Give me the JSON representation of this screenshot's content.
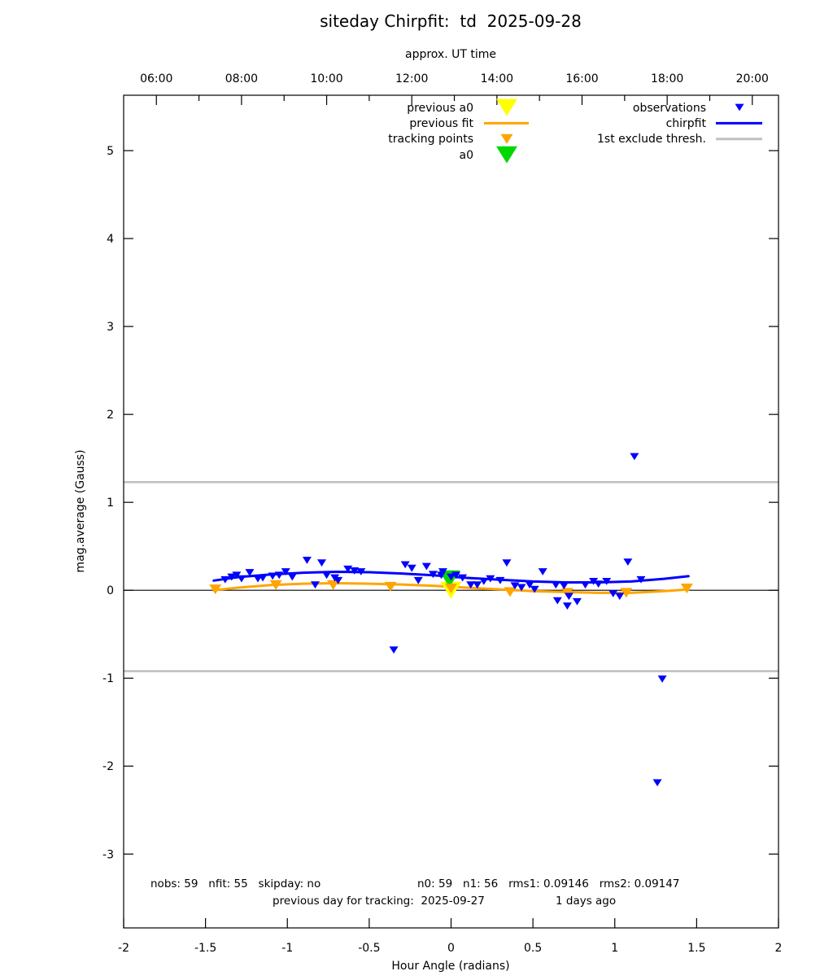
{
  "title": "siteday Chirpfit:  td  2025-09-28",
  "stats": {
    "line1_left": "nobs: 59   nfit: 55   skipday: no",
    "line1_right": "n0: 59   n1: 56   rms1: 0.09146   rms2: 0.09147",
    "line2_left": "previous day for tracking:  2025-09-27",
    "line2_right": "1 days ago"
  },
  "legend": {
    "left": [
      {
        "label": "previous a0",
        "marker": "triangle",
        "color": "#ffff00",
        "size": 26
      },
      {
        "label": "previous fit",
        "marker": "line",
        "color": "#ffa500",
        "size": 0
      },
      {
        "label": "tracking points",
        "marker": "triangle",
        "color": "#ffa500",
        "size": 15
      },
      {
        "label": "a0",
        "marker": "triangle",
        "color": "#00d800",
        "size": 26
      }
    ],
    "right": [
      {
        "label": "observations",
        "marker": "triangle",
        "color": "#0000ff",
        "size": 11
      },
      {
        "label": "chirpfit",
        "marker": "line",
        "color": "#0000ff",
        "size": 0
      },
      {
        "label": "1st exclude thresh.",
        "marker": "line",
        "color": "#c0c0c0",
        "size": 0
      }
    ]
  },
  "chart_data": {
    "type": "scatter",
    "title": "siteday Chirpfit:  td  2025-09-28",
    "x_axis": {
      "label": "Hour Angle (radians)",
      "min": -2,
      "max": 2,
      "ticks": [
        {
          "v": -2,
          "label": "-2"
        },
        {
          "v": -1.5,
          "label": "-1.5"
        },
        {
          "v": -1,
          "label": "-1"
        },
        {
          "v": -0.5,
          "label": "-0.5"
        },
        {
          "v": 0,
          "label": "0"
        },
        {
          "v": 0.5,
          "label": "0.5"
        },
        {
          "v": 1,
          "label": "1"
        },
        {
          "v": 1.5,
          "label": "1.5"
        },
        {
          "v": 2,
          "label": "2"
        }
      ]
    },
    "x2_axis": {
      "label": "approx. UT time",
      "ticks": [
        {
          "v": -1.8,
          "label": "06:00"
        },
        {
          "v": -1.28,
          "label": "08:00"
        },
        {
          "v": -0.76,
          "label": "10:00"
        },
        {
          "v": -0.24,
          "label": "12:00"
        },
        {
          "v": 0.28,
          "label": "14:00"
        },
        {
          "v": 0.8,
          "label": "16:00"
        },
        {
          "v": 1.32,
          "label": "18:00"
        },
        {
          "v": 1.84,
          "label": "20:00"
        }
      ],
      "minor_ticks": [
        -1.54,
        -1.02,
        -0.5,
        0.02,
        0.54,
        1.06,
        1.58
      ]
    },
    "y_axis": {
      "label": "mag.average (Gauss)",
      "min": -3.84,
      "max": 5.63,
      "ticks": [
        {
          "v": -3,
          "label": "-3"
        },
        {
          "v": -2,
          "label": "-2"
        },
        {
          "v": -1,
          "label": "-1"
        },
        {
          "v": 0,
          "label": "0"
        },
        {
          "v": 1,
          "label": "1"
        },
        {
          "v": 2,
          "label": "2"
        },
        {
          "v": 3,
          "label": "3"
        },
        {
          "v": 4,
          "label": "4"
        },
        {
          "v": 5,
          "label": "5"
        }
      ]
    },
    "zero_line": {
      "y": 0,
      "color": "#000000"
    },
    "exclude_thresholds": {
      "values": [
        1.23,
        -0.92
      ],
      "color": "#c0c0c0",
      "label": "1st exclude thresh."
    },
    "series": {
      "observations": {
        "type": "points",
        "marker": "triangle-down",
        "color": "#0000ff",
        "size": 11,
        "points": [
          [
            -1.38,
            0.12
          ],
          [
            -1.34,
            0.15
          ],
          [
            -1.31,
            0.17
          ],
          [
            -1.28,
            0.13
          ],
          [
            -1.23,
            0.2
          ],
          [
            -1.18,
            0.13
          ],
          [
            -1.15,
            0.14
          ],
          [
            -1.09,
            0.16
          ],
          [
            -1.05,
            0.17
          ],
          [
            -1.01,
            0.21
          ],
          [
            -0.97,
            0.15
          ],
          [
            -0.88,
            0.34
          ],
          [
            -0.83,
            0.06
          ],
          [
            -0.79,
            0.31
          ],
          [
            -0.76,
            0.17
          ],
          [
            -0.71,
            0.14
          ],
          [
            -0.69,
            0.11
          ],
          [
            -0.63,
            0.24
          ],
          [
            -0.59,
            0.22
          ],
          [
            -0.55,
            0.21
          ],
          [
            -0.35,
            -0.68
          ],
          [
            -0.28,
            0.29
          ],
          [
            -0.24,
            0.25
          ],
          [
            -0.2,
            0.11
          ],
          [
            -0.15,
            0.27
          ],
          [
            -0.11,
            0.18
          ],
          [
            -0.06,
            0.17
          ],
          [
            -0.05,
            0.21
          ],
          [
            0.0,
            0.15
          ],
          [
            0.03,
            0.17
          ],
          [
            0.07,
            0.14
          ],
          [
            0.12,
            0.06
          ],
          [
            0.16,
            0.06
          ],
          [
            0.2,
            0.1
          ],
          [
            0.24,
            0.13
          ],
          [
            0.3,
            0.11
          ],
          [
            0.34,
            0.31
          ],
          [
            0.39,
            0.05
          ],
          [
            0.43,
            0.03
          ],
          [
            0.48,
            0.06
          ],
          [
            0.51,
            0.01
          ],
          [
            0.56,
            0.21
          ],
          [
            0.64,
            0.06
          ],
          [
            0.65,
            -0.12
          ],
          [
            0.69,
            0.05
          ],
          [
            0.71,
            -0.18
          ],
          [
            0.72,
            -0.07
          ],
          [
            0.77,
            -0.13
          ],
          [
            0.82,
            0.06
          ],
          [
            0.87,
            0.1
          ],
          [
            0.9,
            0.07
          ],
          [
            0.95,
            0.1
          ],
          [
            0.99,
            -0.04
          ],
          [
            1.03,
            -0.07
          ],
          [
            1.08,
            0.32
          ],
          [
            1.12,
            1.52
          ],
          [
            1.16,
            0.12
          ],
          [
            1.26,
            -2.19
          ],
          [
            1.29,
            -1.01
          ]
        ]
      },
      "tracking_points": {
        "type": "points",
        "marker": "triangle-down",
        "color": "#ffa500",
        "size": 15,
        "points": [
          [
            -1.44,
            0.01
          ],
          [
            -1.07,
            0.06
          ],
          [
            -0.72,
            0.06
          ],
          [
            -0.37,
            0.04
          ],
          [
            0.0,
            0.02
          ],
          [
            0.36,
            -0.02
          ],
          [
            0.71,
            -0.03
          ],
          [
            1.07,
            -0.03
          ],
          [
            1.44,
            0.02
          ]
        ]
      },
      "previous_a0": {
        "type": "points",
        "marker": "triangle-down",
        "color": "#ffff00",
        "size": 26,
        "points": [
          [
            0.0,
            0.0
          ]
        ]
      },
      "a0": {
        "type": "points",
        "marker": "triangle-down",
        "color": "#00d800",
        "size": 26,
        "points": [
          [
            -0.01,
            0.13
          ]
        ]
      },
      "previous_fit": {
        "type": "line",
        "color": "#ffa500",
        "width": 3,
        "points": [
          [
            -1.45,
            0.0
          ],
          [
            -1.3,
            0.03
          ],
          [
            -1.1,
            0.06
          ],
          [
            -0.9,
            0.075
          ],
          [
            -0.7,
            0.08
          ],
          [
            -0.5,
            0.075
          ],
          [
            -0.3,
            0.065
          ],
          [
            -0.1,
            0.05
          ],
          [
            0.1,
            0.03
          ],
          [
            0.3,
            0.01
          ],
          [
            0.5,
            -0.01
          ],
          [
            0.7,
            -0.02
          ],
          [
            0.9,
            -0.03
          ],
          [
            1.1,
            -0.03
          ],
          [
            1.3,
            -0.01
          ],
          [
            1.45,
            0.01
          ]
        ]
      },
      "chirpfit": {
        "type": "line",
        "color": "#0000ff",
        "width": 3,
        "points": [
          [
            -1.45,
            0.11
          ],
          [
            -1.3,
            0.15
          ],
          [
            -1.1,
            0.18
          ],
          [
            -0.9,
            0.2
          ],
          [
            -0.7,
            0.21
          ],
          [
            -0.5,
            0.205
          ],
          [
            -0.3,
            0.19
          ],
          [
            -0.1,
            0.17
          ],
          [
            0.1,
            0.14
          ],
          [
            0.3,
            0.12
          ],
          [
            0.5,
            0.1
          ],
          [
            0.7,
            0.09
          ],
          [
            0.9,
            0.09
          ],
          [
            1.1,
            0.1
          ],
          [
            1.3,
            0.13
          ],
          [
            1.45,
            0.16
          ]
        ]
      }
    }
  }
}
